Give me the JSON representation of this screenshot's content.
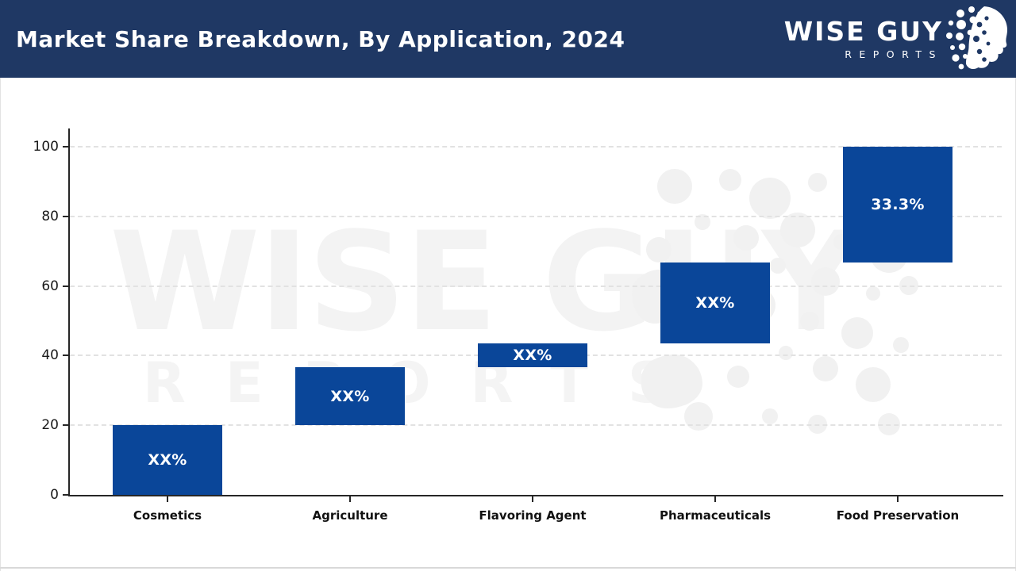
{
  "header": {
    "title": "Market Share Breakdown, By Application, 2024",
    "logo": {
      "line1": "WISE GUY",
      "line2": "REPORTS"
    }
  },
  "watermark": {
    "line1": "WISE GUY",
    "line2": "REPORTS"
  },
  "colors": {
    "header_bg": "#1f3864",
    "bar_fill": "#0a4699",
    "grid": "#e2e2e2",
    "axis": "#262626",
    "watermark": "#f3f3f3"
  },
  "chart_data": {
    "type": "bar",
    "subtype": "waterfall-floating-bars",
    "title": "Market Share Breakdown, By Application, 2024",
    "categories": [
      "Cosmetics",
      "Agriculture",
      "Flavoring Agent",
      "Pharmaceuticals",
      "Food Preservation"
    ],
    "segments": [
      {
        "category": "Cosmetics",
        "start": 0,
        "end": 20,
        "value": 20,
        "label": "XX%"
      },
      {
        "category": "Agriculture",
        "start": 20,
        "end": 36.7,
        "value": 16.7,
        "label": "XX%"
      },
      {
        "category": "Flavoring Agent",
        "start": 36.7,
        "end": 43.4,
        "value": 6.7,
        "label": "XX%"
      },
      {
        "category": "Pharmaceuticals",
        "start": 43.4,
        "end": 66.7,
        "value": 23.3,
        "label": "XX%"
      },
      {
        "category": "Food Preservation",
        "start": 66.7,
        "end": 100,
        "value": 33.3,
        "label": "33.3%"
      }
    ],
    "bar_labels": [
      "XX%",
      "XX%",
      "XX%",
      "XX%",
      "33.3%"
    ],
    "yticks": [
      0,
      20,
      40,
      60,
      80,
      100
    ],
    "ylim": [
      0,
      105
    ],
    "xlabel": "",
    "ylabel": "",
    "grid": "horizontal-dashed",
    "legend": "none",
    "bar_color": "#0a4699"
  }
}
